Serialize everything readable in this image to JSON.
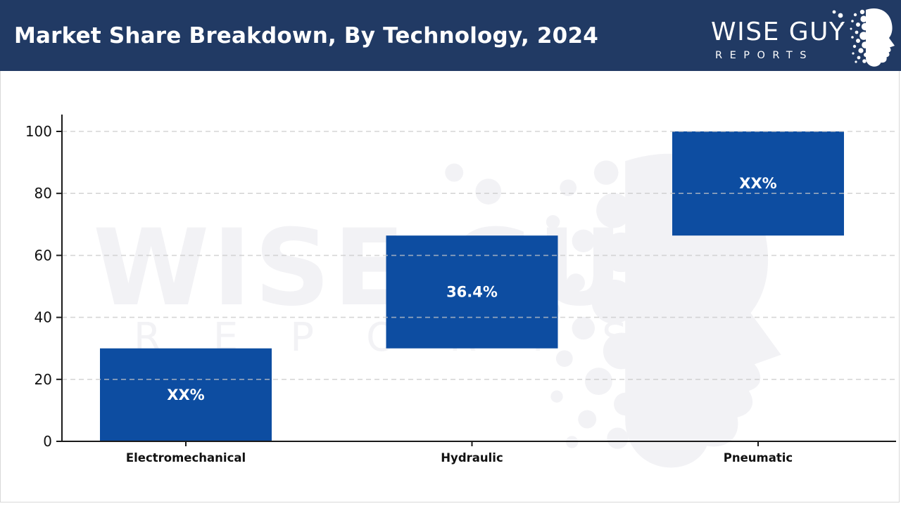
{
  "header": {
    "title": "Market Share Breakdown, By Technology, 2024",
    "logo": {
      "brand": "WISE GUY",
      "reports": "REPORTS"
    }
  },
  "watermark": {
    "brand": "WISE GUY",
    "reports": "REPORTS"
  },
  "chart_data": {
    "type": "bar",
    "variant": "floating-segment-waterfall",
    "title": "Market Share Breakdown, By Technology, 2024",
    "categories": [
      "Electromechanical",
      "Hydraulic",
      "Pneumatic"
    ],
    "segments": [
      {
        "category": "Electromechanical",
        "from": 0,
        "to": 30,
        "label": "XX%"
      },
      {
        "category": "Hydraulic",
        "from": 30,
        "to": 66.4,
        "label": "36.4%"
      },
      {
        "category": "Pneumatic",
        "from": 66.4,
        "to": 100,
        "label": "XX%"
      }
    ],
    "yticks": [
      0,
      20,
      40,
      60,
      80,
      100
    ],
    "ylim": [
      0,
      100
    ],
    "xlabel": "",
    "ylabel": "",
    "legend": "none",
    "grid": "horizontal-dashed"
  },
  "colors": {
    "header_bg": "#213a64",
    "bar_fill": "#0d4da1",
    "bar_label": "#ffffff",
    "axis": "#1a1a1a",
    "tick_label": "#111111",
    "grid_line": "rgba(200,200,200,0.75)",
    "watermark": "#f2f2f5",
    "frame_border": "#d8d8d8",
    "logo_fill": "#ffffff"
  }
}
